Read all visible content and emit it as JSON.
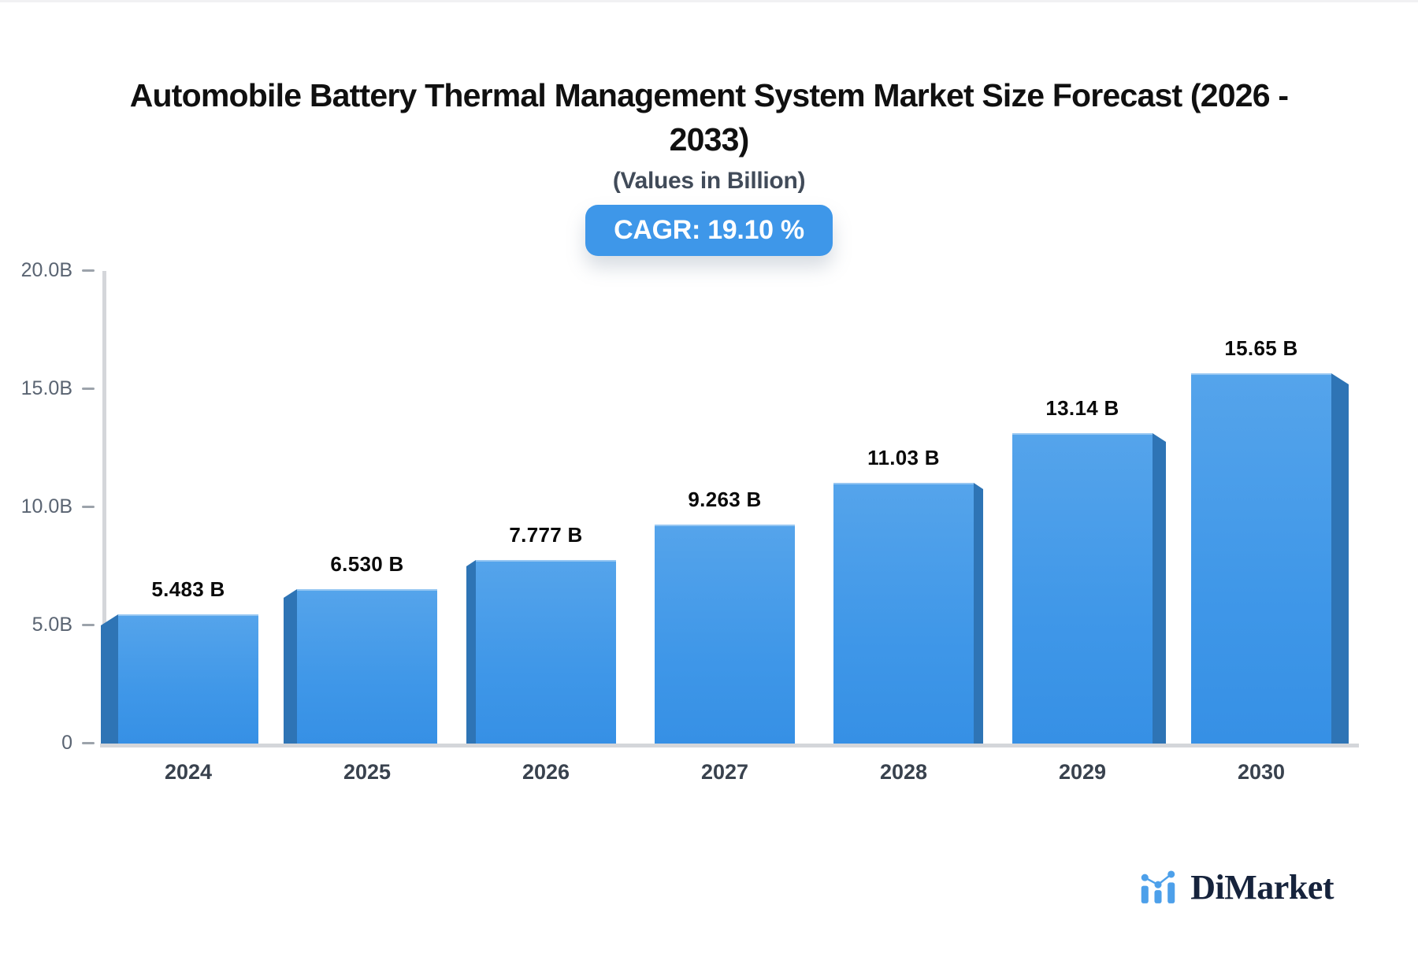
{
  "header": {
    "title": "Automobile Battery Thermal Management System Market Size Forecast (2026 - 2033)",
    "title_lines": [
      "Automobile Battery Thermal Management System Market Size Forecast (2026 -",
      "2033)"
    ],
    "subtitle": "(Values in Billion)",
    "cagr_label": "CAGR: 19.10 %"
  },
  "chart_data": {
    "type": "bar",
    "title": "Automobile Battery Thermal Management System Market Size Forecast (2026 - 2033)",
    "subtitle": "(Values in Billion)",
    "cagr": "19.10 %",
    "categories": [
      "2024",
      "2025",
      "2026",
      "2027",
      "2028",
      "2029",
      "2030"
    ],
    "values": [
      5.483,
      6.53,
      7.777,
      9.263,
      11.03,
      13.14,
      15.65
    ],
    "value_labels": [
      "5.483 B",
      "6.530 B",
      "7.777 B",
      "9.263 B",
      "11.03 B",
      "13.14 B",
      "15.65 B"
    ],
    "xlabel": "",
    "ylabel": "",
    "unit": "Billion",
    "ylim": [
      0,
      20
    ],
    "ytick_values": [
      20,
      15,
      10,
      5,
      0
    ],
    "ytick_labels": [
      "20.0B",
      "15.0B",
      "10.0B",
      "5.0B",
      "0"
    ],
    "grid": false,
    "legend": false,
    "bar_style": "3d-perspective-center"
  },
  "colors": {
    "badge_bg": "#3e97e9",
    "bar_face_top": "#55a4eb",
    "bar_face_mid": "#3f97e8",
    "bar_face_bottom": "#3690e5",
    "bar_side": "#2e74b5",
    "axis_line": "#d4d6da",
    "tick_label": "#5a6472",
    "year_label": "#39424e",
    "value_label": "#0a0a0a",
    "logo_blue": "#4da0ea",
    "logo_navy": "#16233c"
  },
  "logo": {
    "text": "DiMarket",
    "icon": "bar-chart-trend-icon"
  }
}
